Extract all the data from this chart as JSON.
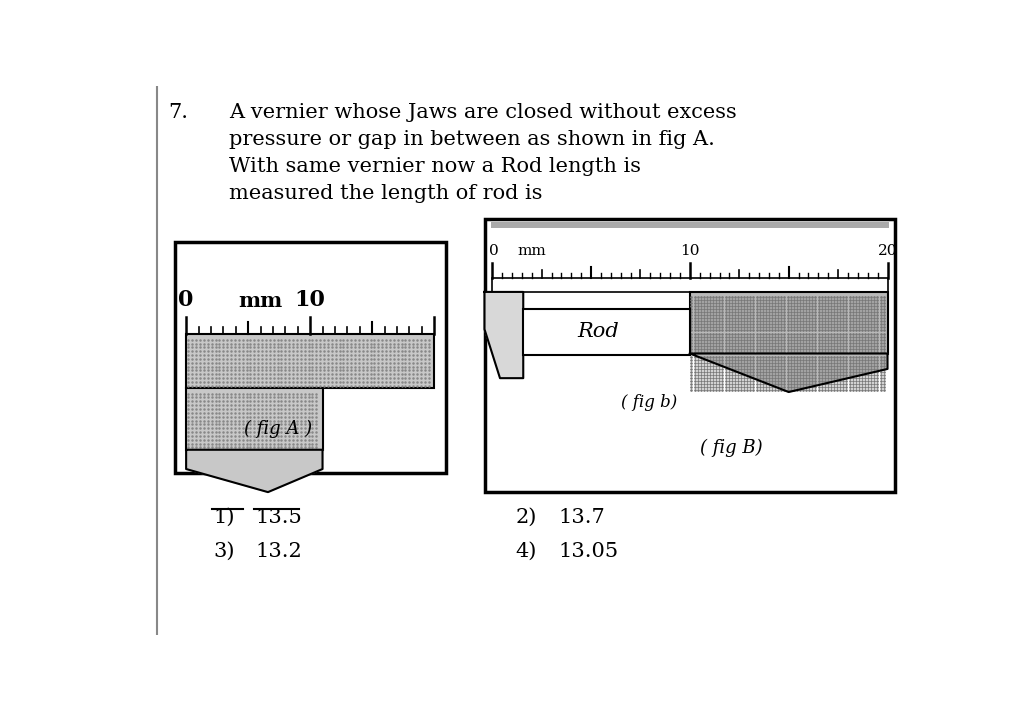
{
  "bg_color": "#ffffff",
  "question_number": "7.",
  "question_text_line1": "A vernier whose Jaws are closed without excess",
  "question_text_line2": "pressure or gap in between as shown in fig A.",
  "question_text_line3": "With same vernier now a Rod length is",
  "question_text_line4": "measured the length of rod is",
  "options": [
    {
      "num": "1)",
      "val": "13.5",
      "underline": true
    },
    {
      "num": "2)",
      "val": "13.7",
      "underline": false
    },
    {
      "num": "3)",
      "val": "13.2",
      "underline": false
    },
    {
      "num": "4)",
      "val": "13.05",
      "underline": false
    }
  ],
  "fig_A_label": "( fig A )",
  "fig_b_inner_label": "( fig b)",
  "fig_B_label": "( fig B)",
  "rod_label": "Rod",
  "main_scale_label_0": "0",
  "main_scale_label_mm": "mm",
  "main_scale_label_10": "10",
  "fig_b_scale_0": "0",
  "fig_b_scale_mm": "mm",
  "fig_b_scale_10": "10",
  "fig_b_scale_20": "20"
}
